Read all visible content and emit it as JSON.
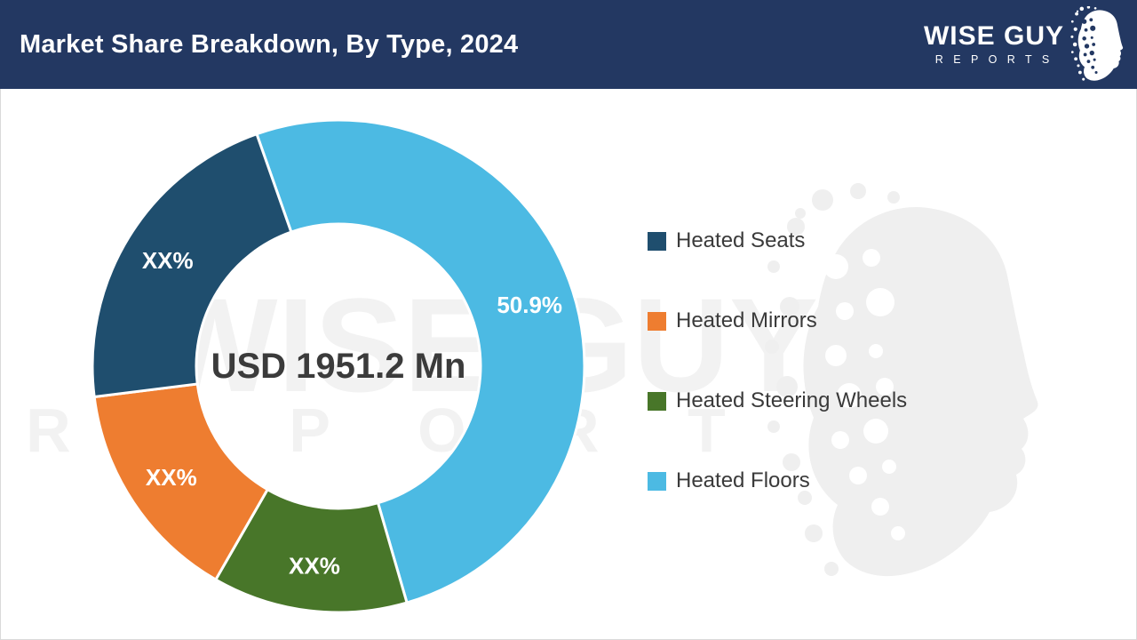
{
  "header": {
    "title": "Market Share Breakdown, By Type, 2024",
    "logo_line1": "WISE GUY",
    "logo_line2": "R E P O R T S"
  },
  "watermark": {
    "line1": "WISE GUY",
    "line2": "R E P O R T S"
  },
  "chart_data": {
    "type": "pie",
    "donut": true,
    "title": "Market Share Breakdown, By Type, 2024",
    "center_label": "USD 1951.2 Mn",
    "start_angle_deg": -19.4,
    "segments": [
      {
        "label": "Heated Seats",
        "value_pct": 21.6,
        "display_label": "XX%",
        "color": "#1f4e6e"
      },
      {
        "label": "Heated Mirrors",
        "value_pct": 14.7,
        "display_label": "XX%",
        "color": "#ee7d30"
      },
      {
        "label": "Heated Steering Wheels",
        "value_pct": 12.8,
        "display_label": "XX%",
        "color": "#487629"
      },
      {
        "label": "Heated Floors",
        "value_pct": 50.9,
        "display_label": "50.9%",
        "color": "#4cbae3"
      }
    ],
    "draw_order": [
      3,
      2,
      1,
      0
    ],
    "legend_position": "right",
    "slice_gap_color": "#ffffff"
  },
  "colors": {
    "header_bg": "#233862",
    "center_text": "#3b3b3b",
    "legend_text": "#3a3a3a",
    "watermark": "#efefef",
    "border": "#d9d9d9"
  }
}
